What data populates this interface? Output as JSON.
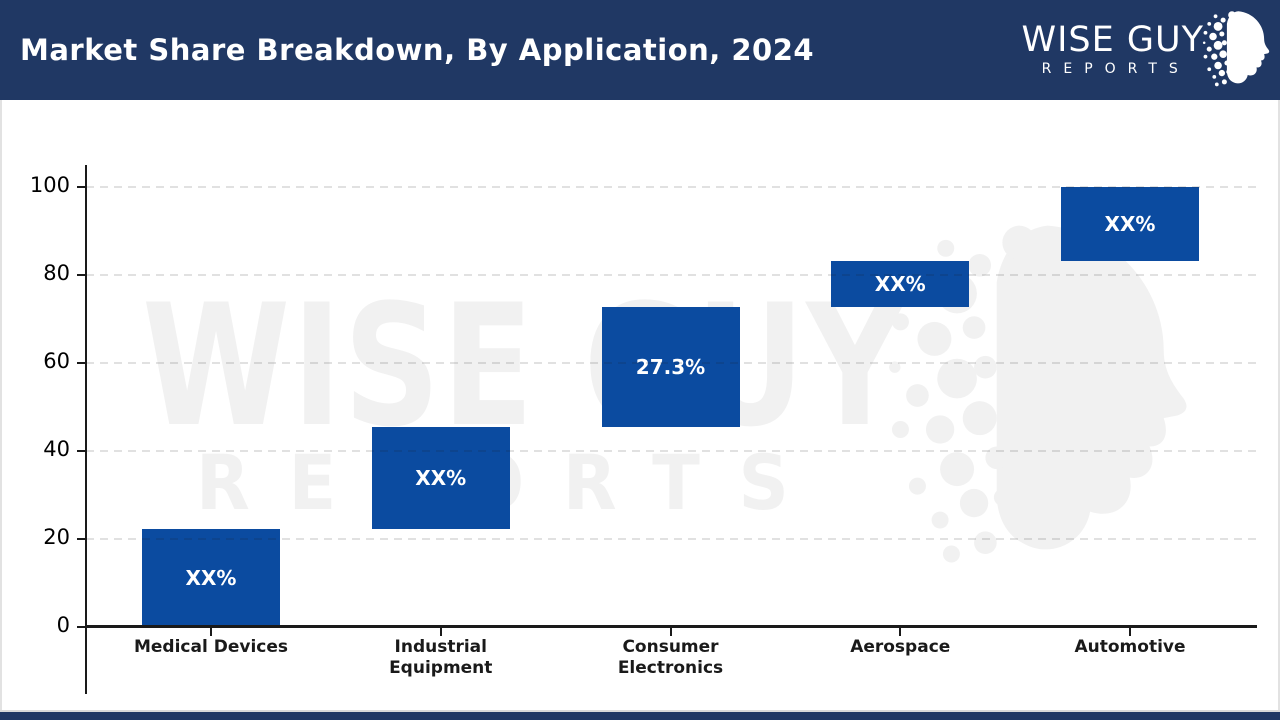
{
  "header": {
    "title": "Market Share Breakdown, By Application, 2024",
    "logo": {
      "primary": "WISE GUY",
      "secondary": "REPORTS"
    }
  },
  "watermark": {
    "primary": "WISE GUY",
    "secondary": "REPORTS"
  },
  "colors": {
    "background": "#FFFFFF",
    "header_bg": "#203864",
    "footer_bg": "#203864",
    "bar_fill": "#0B4BA0",
    "bar_label_text": "#FFFFFF",
    "axis": "#1A1A1A",
    "tick_label": "#000000",
    "category_label": "#1A1A1A",
    "gridline": "#DEDEDE",
    "watermark": "#F1F1F1"
  },
  "chart_data": {
    "type": "bar",
    "subtype": "waterfall-floating-segments",
    "title": "Market Share Breakdown, By Application, 2024",
    "categories": [
      "Medical Devices",
      "Industrial Equipment",
      "Consumer Electronics",
      "Aerospace",
      "Automotive"
    ],
    "tick_labels": [
      "Medical Devices",
      "Industrial\nEquipment",
      "Consumer\nElectronics",
      "Aerospace",
      "Automotive"
    ],
    "segments": [
      {
        "category": "Medical Devices",
        "start": 0,
        "end": 22.3,
        "label": "XX%"
      },
      {
        "category": "Industrial Equipment",
        "start": 22.3,
        "end": 45.4,
        "label": "XX%"
      },
      {
        "category": "Consumer Electronics",
        "start": 45.4,
        "end": 72.7,
        "label": "27.3%"
      },
      {
        "category": "Aerospace",
        "start": 72.7,
        "end": 83.2,
        "label": "XX%"
      },
      {
        "category": "Automotive",
        "start": 83.2,
        "end": 100,
        "label": "XX%"
      }
    ],
    "ylim": [
      0,
      100
    ],
    "yticks": [
      0,
      20,
      40,
      60,
      80,
      100
    ],
    "xlabel": "",
    "ylabel": "",
    "grid": "horizontal-dashed",
    "legend": null
  }
}
